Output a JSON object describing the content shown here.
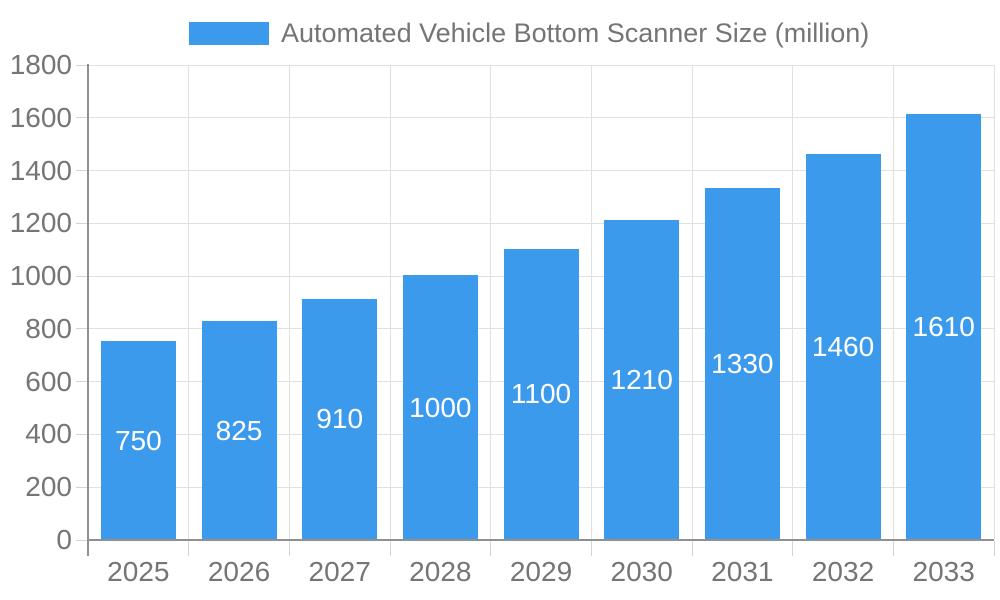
{
  "legend": {
    "label": "Automated Vehicle Bottom Scanner Size (million)"
  },
  "chart_data": {
    "type": "bar",
    "title": "Automated Vehicle Bottom Scanner Size (million)",
    "series_name": "Automated Vehicle Bottom Scanner Size (million)",
    "categories": [
      "2025",
      "2026",
      "2027",
      "2028",
      "2029",
      "2030",
      "2031",
      "2032",
      "2033"
    ],
    "values": [
      750,
      825,
      910,
      1000,
      1100,
      1210,
      1330,
      1460,
      1610
    ],
    "value_labels_position": "inside-center",
    "xlabel": "",
    "ylabel": "",
    "ylim": [
      0,
      1800
    ],
    "ytick_step": 200,
    "ytick_labels": [
      "0",
      "200",
      "400",
      "600",
      "800",
      "1000",
      "1200",
      "1400",
      "1600",
      "1800"
    ],
    "grid": true,
    "legend_position": "top"
  },
  "colors": {
    "bar": "#3B9AEB",
    "grid": "#E0E0E0",
    "axis": "#909090",
    "tick": "#D4D4D4",
    "label_text": "#757575",
    "value_text": "#FFFFFF",
    "background": "#FFFFFF"
  }
}
